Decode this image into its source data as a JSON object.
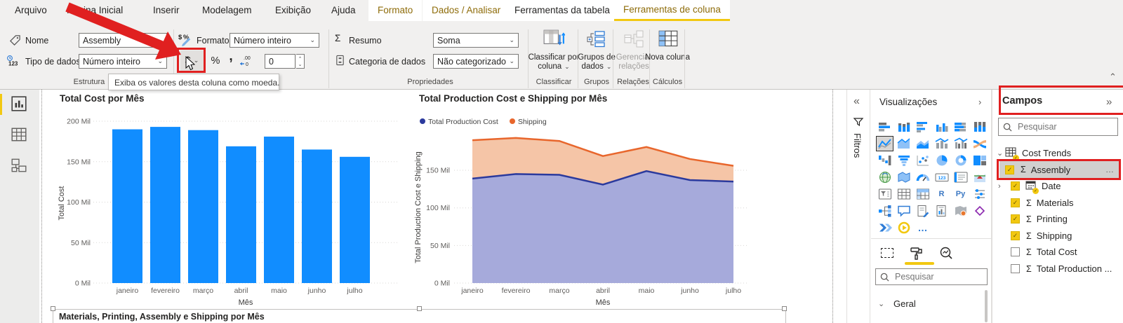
{
  "menu": {
    "tabs": [
      {
        "label": "Arquivo"
      },
      {
        "label": "Página Inicial"
      },
      {
        "label": "Inserir"
      },
      {
        "label": "Modelagem"
      },
      {
        "label": "Exibição"
      },
      {
        "label": "Ajuda"
      },
      {
        "label": "Formato",
        "contextual": true
      },
      {
        "label": "Dados / Analisar",
        "contextual": true
      },
      {
        "label": "Ferramentas da tabela",
        "contextual": true
      },
      {
        "label": "Ferramentas de coluna",
        "contextual": true,
        "active": true
      }
    ]
  },
  "ribbon": {
    "name_label": "Nome",
    "name_value": "Assembly",
    "datatype_label": "Tipo de dados",
    "datatype_value": "Número inteiro",
    "format_label": "Formato",
    "format_value": "Número inteiro",
    "currency_symbol": "$",
    "percent_symbol": "%",
    "comma_symbol": ",",
    "decimals_value": "0",
    "summary_label": "Resumo",
    "summary_value": "Soma",
    "category_label": "Categoria de dados",
    "category_value": "Não categorizado",
    "sort_button": "Classificar por coluna",
    "groups_button": "Grupos de dados",
    "relations_button": "Gerenciar relações",
    "newcolumn_button": "Nova coluna",
    "groups": {
      "structure": "Estrutura",
      "properties": "Propriedades",
      "sort": "Classificar",
      "groups": "Grupos",
      "relations": "Relações",
      "calculations": "Cálculos"
    },
    "tooltip": "Exiba os valores desta coluna como moeda."
  },
  "panels": {
    "filters": {
      "title": "Filtros"
    },
    "visualizations": {
      "title": "Visualizações",
      "search_placeholder": "Pesquisar",
      "r_label": "R",
      "py_label": "Py",
      "more_label": "…",
      "general_section": "Geral"
    },
    "fields": {
      "title": "Campos",
      "search_placeholder": "Pesquisar",
      "table_name": "Cost Trends",
      "more_icon": "…",
      "items": [
        {
          "label": "Assembly",
          "checked": true,
          "selected": true
        },
        {
          "label": "Date",
          "checked": true,
          "expandable": true
        },
        {
          "label": "Materials",
          "checked": true
        },
        {
          "label": "Printing",
          "checked": true
        },
        {
          "label": "Shipping",
          "checked": true
        },
        {
          "label": "Total Cost",
          "checked": false
        },
        {
          "label": "Total Production ...",
          "checked": false
        }
      ]
    }
  },
  "chart_data": [
    {
      "type": "bar",
      "title": "Total Cost por Mês",
      "categories": [
        "janeiro",
        "fevereiro",
        "março",
        "abril",
        "maio",
        "junho",
        "julho"
      ],
      "values": [
        190,
        193,
        189,
        169,
        181,
        165,
        156
      ],
      "xlabel": "Mês",
      "ylabel": "Total Cost",
      "ylim": [
        0,
        200
      ],
      "yticks": [
        0,
        50,
        100,
        150,
        200
      ],
      "ytick_suffix": " Mil",
      "color": "#118DFF",
      "grid": true
    },
    {
      "type": "area",
      "stacked": true,
      "title": "Total Production Cost e Shipping por Mês",
      "categories": [
        "janeiro",
        "fevereiro",
        "março",
        "abril",
        "maio",
        "junho",
        "julho"
      ],
      "series": [
        {
          "name": "Total Production Cost",
          "values": [
            139,
            145,
            144,
            131,
            149,
            137,
            135
          ],
          "line_color": "#2B3A9D",
          "fill_color": "#A6AADB"
        },
        {
          "name": "Shipping",
          "values": [
            51,
            48,
            45,
            38,
            32,
            28,
            21
          ],
          "line_color": "#E8662C",
          "fill_color": "#F5C5A7"
        }
      ],
      "xlabel": "Mês",
      "ylabel": "Total Production Cost e Shipping",
      "ylim": [
        0,
        200
      ],
      "yticks": [
        0,
        50,
        100,
        150
      ],
      "ytick_suffix": " Mil",
      "legend_position": "top",
      "grid": true
    },
    {
      "type": "title-only",
      "title": "Materials, Printing, Assembly e Shipping por Mês"
    }
  ],
  "colors": {
    "accent_yellow": "#F2C811",
    "bar_blue": "#118DFF",
    "production_blue": "#2B3A9D",
    "production_fill": "#A6AADB",
    "shipping_orange": "#E8662C",
    "shipping_fill": "#F5C5A7",
    "annotation_red": "#E02020"
  }
}
